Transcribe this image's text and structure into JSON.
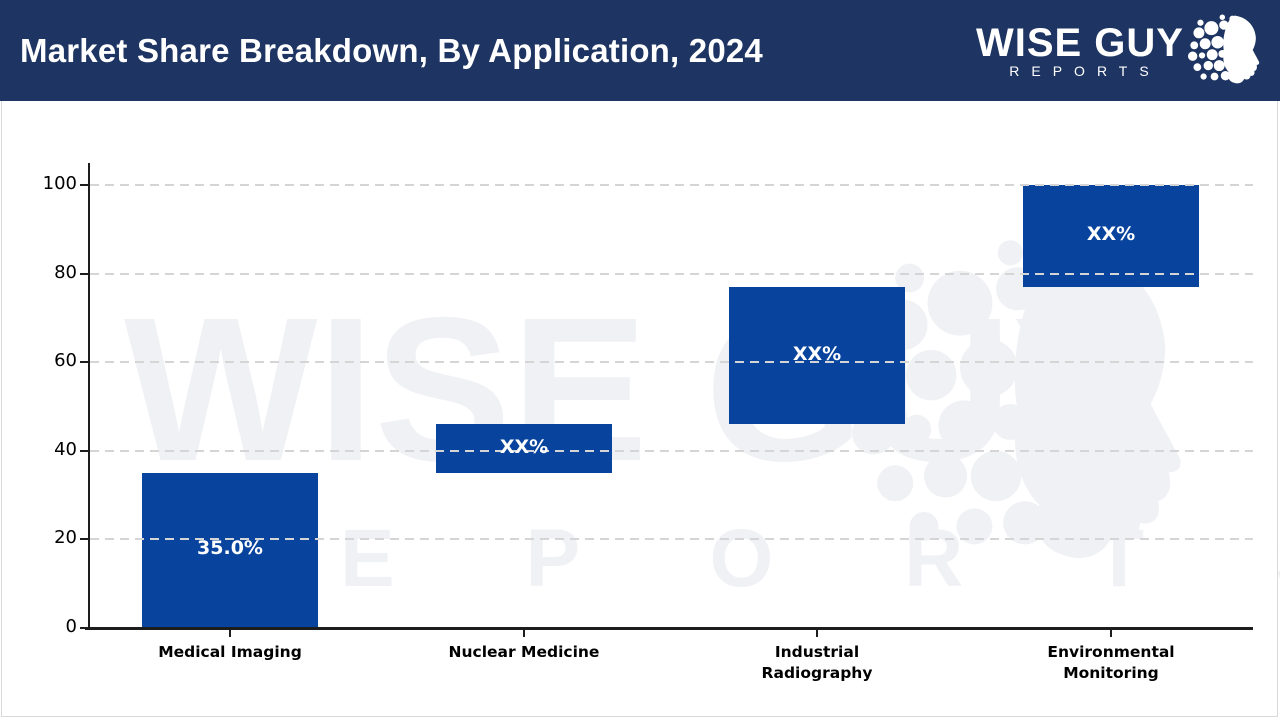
{
  "header": {
    "title": "Market Share Breakdown, By Application, 2024",
    "logo": {
      "wordmark": "WISE GUY",
      "subtext": "REPORTS"
    }
  },
  "watermark": {
    "wordmark": "WISE GUY",
    "subtext": "R E P O R T S"
  },
  "colors": {
    "header_bg": "#1e3462",
    "bar": "#08449e",
    "bar_label": "#ffffff",
    "gridline": "#d5d5d5",
    "axis": "#1d1d1d",
    "tick_label": "#000000",
    "watermark": "#f0f1f4",
    "frame_border": "#d9d9d9"
  },
  "chart_data": {
    "type": "bar",
    "subtype": "waterfall",
    "title": "Market Share Breakdown, By Application, 2024",
    "categories": [
      "Medical Imaging",
      "Nuclear Medicine",
      "Industrial Radiography",
      "Environmental Monitoring"
    ],
    "category_lines": [
      [
        "Medical Imaging"
      ],
      [
        "Nuclear Medicine"
      ],
      [
        "Industrial",
        "Radiography"
      ],
      [
        "Environmental",
        "Monitoring"
      ]
    ],
    "bars": [
      {
        "category": "Medical Imaging",
        "start": 0,
        "end": 35,
        "label": "35.0%"
      },
      {
        "category": "Nuclear Medicine",
        "start": 35,
        "end": 46,
        "label": "XX%"
      },
      {
        "category": "Industrial Radiography",
        "start": 46,
        "end": 77,
        "label": "XX%"
      },
      {
        "category": "Environmental Monitoring",
        "start": 77,
        "end": 100,
        "label": "XX%"
      }
    ],
    "segment_values": [
      35,
      11,
      31,
      23
    ],
    "xlabel": "",
    "ylabel": "",
    "ylim": [
      0,
      100
    ],
    "yticks": [
      0,
      20,
      40,
      60,
      80,
      100
    ],
    "grid": "horizontal-dashed",
    "legend": "none"
  }
}
